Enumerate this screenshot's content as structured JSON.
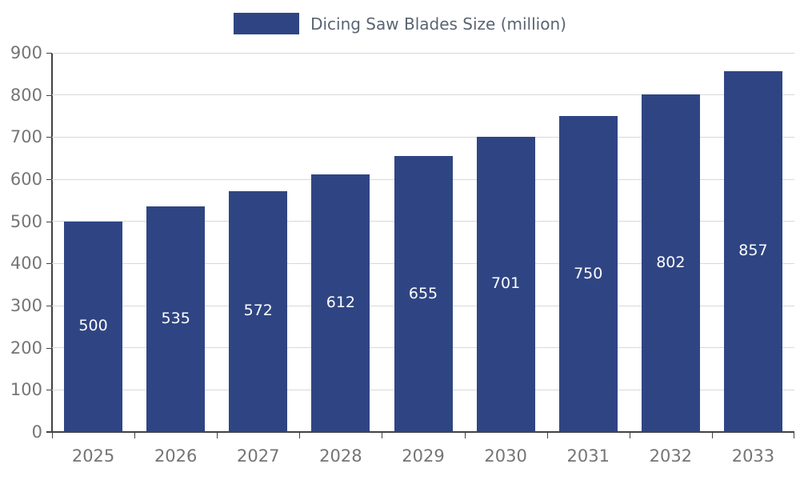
{
  "chart_data": {
    "type": "bar",
    "title": "Dicing Saw Blades Size (million)",
    "categories": [
      "2025",
      "2026",
      "2027",
      "2028",
      "2029",
      "2030",
      "2031",
      "2032",
      "2033"
    ],
    "values": [
      500,
      535,
      572,
      612,
      655,
      701,
      750,
      802,
      857
    ],
    "xlabel": "",
    "ylabel": "",
    "ylim": [
      0,
      900
    ],
    "y_ticks": [
      0,
      100,
      200,
      300,
      400,
      500,
      600,
      700,
      800,
      900
    ],
    "grid": true,
    "legend_position": "top",
    "colors": {
      "bar": "#2f4583",
      "bar_label": "#ffffff",
      "axis_text": "#757575",
      "legend_text": "#5a6472",
      "gridline": "#d9d9d9",
      "axis_line": "#424242"
    }
  }
}
